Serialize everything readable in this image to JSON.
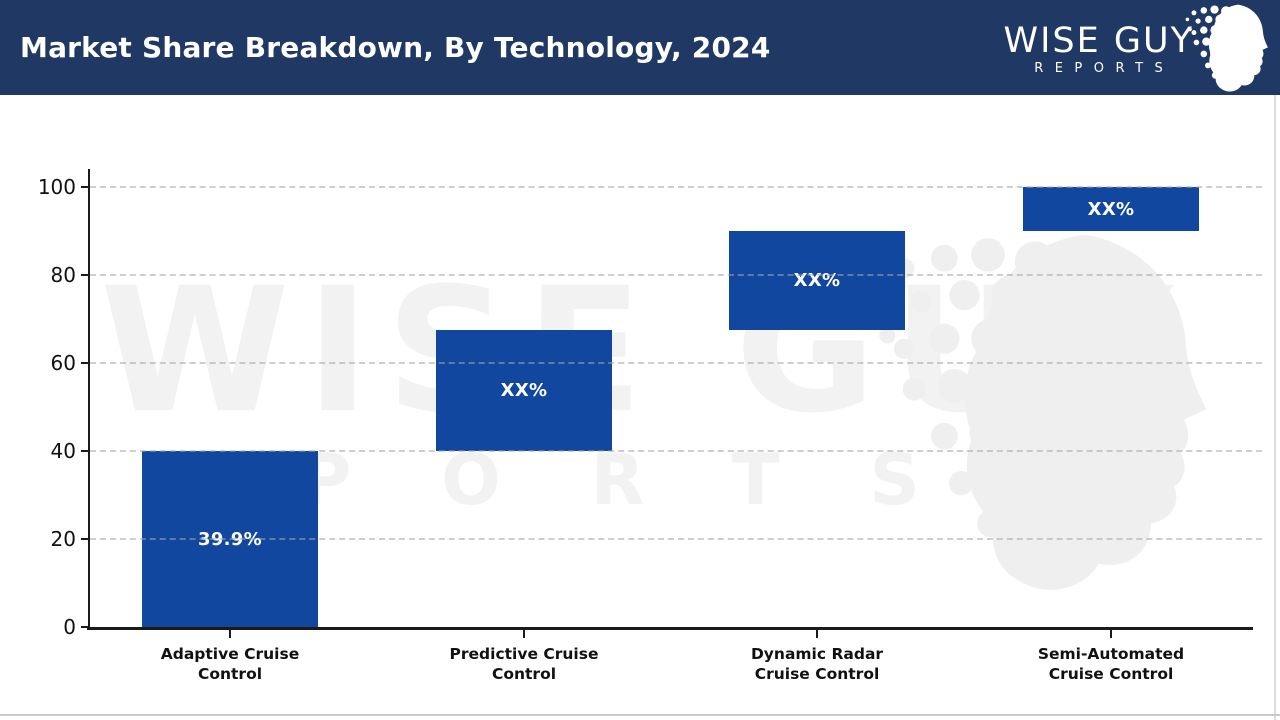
{
  "header": {
    "title": "Market Share Breakdown, By Technology, 2024",
    "brand_line1": "WISE GUY",
    "brand_line2": "REPORTS",
    "bg_color": "#1f3864"
  },
  "watermark": {
    "line1": "WISE GUY",
    "line2": "PORTS"
  },
  "chart_data": {
    "type": "bar",
    "subtype": "waterfall-floating-bars",
    "title": "Market Share Breakdown, By Technology, 2024",
    "categories": [
      "Adaptive Cruise\nControl",
      "Predictive Cruise\nControl",
      "Dynamic Radar\nCruise Control",
      "Semi-Automated\nCruise Control"
    ],
    "segments": [
      {
        "category": "Adaptive Cruise Control",
        "from": 0,
        "to": 39.9,
        "label": "39.9%"
      },
      {
        "category": "Predictive Cruise Control",
        "from": 40,
        "to": 67.5,
        "label": "XX%"
      },
      {
        "category": "Dynamic Radar Cruise Control",
        "from": 67.5,
        "to": 90,
        "label": "XX%"
      },
      {
        "category": "Semi-Automated Cruise Control",
        "from": 90,
        "to": 100,
        "label": "XX%"
      }
    ],
    "y_ticks": [
      0,
      20,
      40,
      60,
      80,
      100
    ],
    "ylim": [
      0,
      104
    ],
    "xlabel": "",
    "ylabel": "",
    "grid": "horizontal-dashed",
    "legend": "none",
    "bar_color": "#11479e",
    "bar_label_color": "#ffffff",
    "axis_color": "#1a1a1a"
  }
}
